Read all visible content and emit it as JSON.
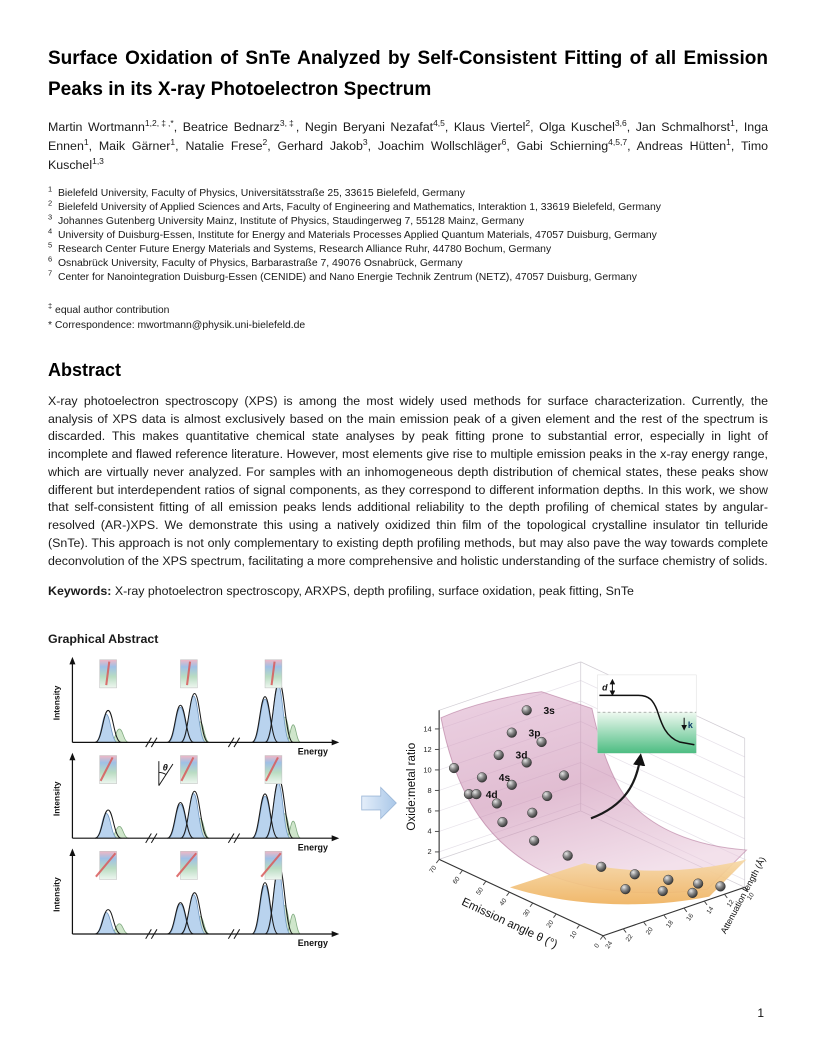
{
  "page": {
    "number": "1"
  },
  "title": "Surface Oxidation of SnTe Analyzed by Self-Consistent Fitting of all Emission Peaks in its X-ray Photoelectron Spectrum",
  "authors": [
    {
      "name": "Martin Wortmann",
      "sup": "1,2,‡,*"
    },
    {
      "name": "Beatrice Bednarz",
      "sup": "3,‡"
    },
    {
      "name": "Negin Beryani Nezafat",
      "sup": "4,5"
    },
    {
      "name": "Klaus Viertel",
      "sup": "2"
    },
    {
      "name": "Olga Kuschel",
      "sup": "3,6"
    },
    {
      "name": "Jan Schmalhorst",
      "sup": "1"
    },
    {
      "name": "Inga Ennen",
      "sup": "1"
    },
    {
      "name": "Maik Gärner",
      "sup": "1"
    },
    {
      "name": "Natalie Frese",
      "sup": "2"
    },
    {
      "name": "Gerhard Jakob",
      "sup": "3"
    },
    {
      "name": "Joachim Wollschläger",
      "sup": "6"
    },
    {
      "name": "Gabi Schierning",
      "sup": "4,5,7"
    },
    {
      "name": "Andreas Hütten",
      "sup": "1"
    },
    {
      "name": "Timo Kuschel",
      "sup": "1,3"
    }
  ],
  "affiliations": [
    {
      "num": "1",
      "text": "Bielefeld University, Faculty of Physics, Universitätsstraße 25, 33615 Bielefeld, Germany"
    },
    {
      "num": "2",
      "text": "Bielefeld University of Applied Sciences and Arts, Faculty of Engineering and Mathematics, Interaktion 1, 33619 Bielefeld, Germany"
    },
    {
      "num": "3",
      "text": "Johannes Gutenberg University Mainz, Institute of Physics, Staudingerweg 7, 55128 Mainz, Germany"
    },
    {
      "num": "4",
      "text": "University of Duisburg-Essen, Institute for Energy and Materials Processes Applied Quantum Materials, 47057 Duisburg, Germany"
    },
    {
      "num": "5",
      "text": "Research Center Future Energy Materials and Systems, Research Alliance Ruhr, 44780 Bochum, Germany"
    },
    {
      "num": "6",
      "text": "Osnabrück University, Faculty of Physics, Barbarastraße 7, 49076 Osnabrück, Germany"
    },
    {
      "num": "7",
      "text": "Center for Nanointegration Duisburg-Essen (CENIDE) and Nano Energie Technik Zentrum (NETZ), 47057 Duisburg, Germany"
    }
  ],
  "footnotes": [
    {
      "marker": "‡",
      "sup": true,
      "text": "equal author contribution"
    },
    {
      "marker": "*",
      "sup": false,
      "text": "Correspondence: mwortmann@physik.uni-bielefeld.de"
    }
  ],
  "abstract": {
    "heading": "Abstract",
    "text": "X-ray photoelectron spectroscopy (XPS) is among the most widely used methods for surface characterization. Currently, the analysis of XPS data is almost exclusively based on the main emission peak of a given element and the rest of the spectrum is discarded. This makes quantitative chemical state analyses by peak fitting prone to substantial error, especially in light of incomplete and flawed reference literature. However, most elements give rise to multiple emission peaks in the x-ray energy range, which are virtually never analyzed. For samples with an inhomogeneous depth distribution of chemical states, these peaks show different but interdependent ratios of signal components, as they correspond to different information depths. In this work, we show that self-consistent fitting of all emission peaks lends additional reliability to the depth profiling of chemical states by angular-resolved (AR-)XPS. We demonstrate this using a natively oxidized thin film of the topological crystalline insulator tin telluride (SnTe). This approach is not only complementary to existing depth profiling methods, but may also pave the way towards complete deconvolution of the XPS spectrum, facilitating a more comprehensive and holistic understanding of the surface chemistry of solids."
  },
  "keywords": {
    "label": "Keywords:",
    "text": "X-ray photoelectron spectroscopy, ARXPS, depth profiling, surface oxidation, peak fitting, SnTe"
  },
  "graphical_abstract": {
    "heading": "Graphical Abstract",
    "spectra": {
      "ylabel": "Intensity",
      "xlabel": "Energy",
      "theta_label": "θ"
    },
    "plot3d": {
      "ylabel": "Oxide:metal ratio",
      "xlabel": "Emission angle θ (°)",
      "zlabel": "Attenuation length (Å)",
      "y_ticks": [
        "2",
        "4",
        "6",
        "8",
        "10",
        "12",
        "14"
      ],
      "x_ticks": [
        "70",
        "60",
        "50",
        "40",
        "30",
        "20",
        "10",
        "0"
      ],
      "z_ticks": [
        "10",
        "12",
        "14",
        "16",
        "18",
        "20",
        "22",
        "24"
      ],
      "peak_labels": [
        "3s",
        "3p",
        "3d",
        "4s",
        "4d"
      ],
      "inset": {
        "d_label": "d",
        "k_label": "k"
      }
    },
    "colors": {
      "oxide_surface_pink": "#c887ad",
      "metal_surface_orange": "#efb25f",
      "peak_blue": "#b9d3ee",
      "peak_green": "#cfe6cb"
    }
  }
}
